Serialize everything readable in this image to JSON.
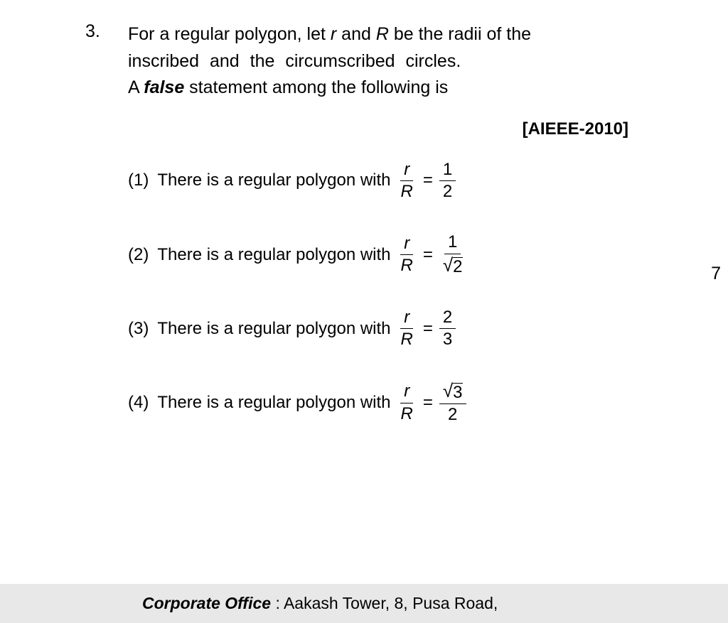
{
  "question": {
    "number": "3.",
    "line1_a": "For a regular polygon, let ",
    "line1_r": "r",
    "line1_b": " and ",
    "line1_R": "R",
    "line1_c": " be the radii of the",
    "line2": "inscribed and the circumscribed circles.",
    "line3_a": "A ",
    "line3_bold": "false",
    "line3_b": " statement among the following is"
  },
  "exam_tag": "[AIEEE-2010]",
  "options": {
    "prefix_text": "There is a regular polygon with",
    "items": [
      {
        "num": "(1)",
        "lhs_num": "r",
        "lhs_den": "R",
        "rhs_num": "1",
        "rhs_den": "2",
        "rhs_num_sqrt": false,
        "rhs_den_sqrt": false
      },
      {
        "num": "(2)",
        "lhs_num": "r",
        "lhs_den": "R",
        "rhs_num": "1",
        "rhs_den": "2",
        "rhs_num_sqrt": false,
        "rhs_den_sqrt": true
      },
      {
        "num": "(3)",
        "lhs_num": "r",
        "lhs_den": "R",
        "rhs_num": "2",
        "rhs_den": "3",
        "rhs_num_sqrt": false,
        "rhs_den_sqrt": false
      },
      {
        "num": "(4)",
        "lhs_num": "r",
        "lhs_den": "R",
        "rhs_num": "3",
        "rhs_den": "2",
        "rhs_num_sqrt": true,
        "rhs_den_sqrt": false
      }
    ]
  },
  "side_text": "7",
  "footer": {
    "label": "Corporate Office",
    "text": " : Aakash Tower, 8, Pusa Road,"
  },
  "colors": {
    "background": "#ffffff",
    "text": "#000000",
    "footer_bg": "#e8e8e8"
  },
  "fonts": {
    "body_size": 25,
    "option_size": 24,
    "footer_size": 23
  }
}
